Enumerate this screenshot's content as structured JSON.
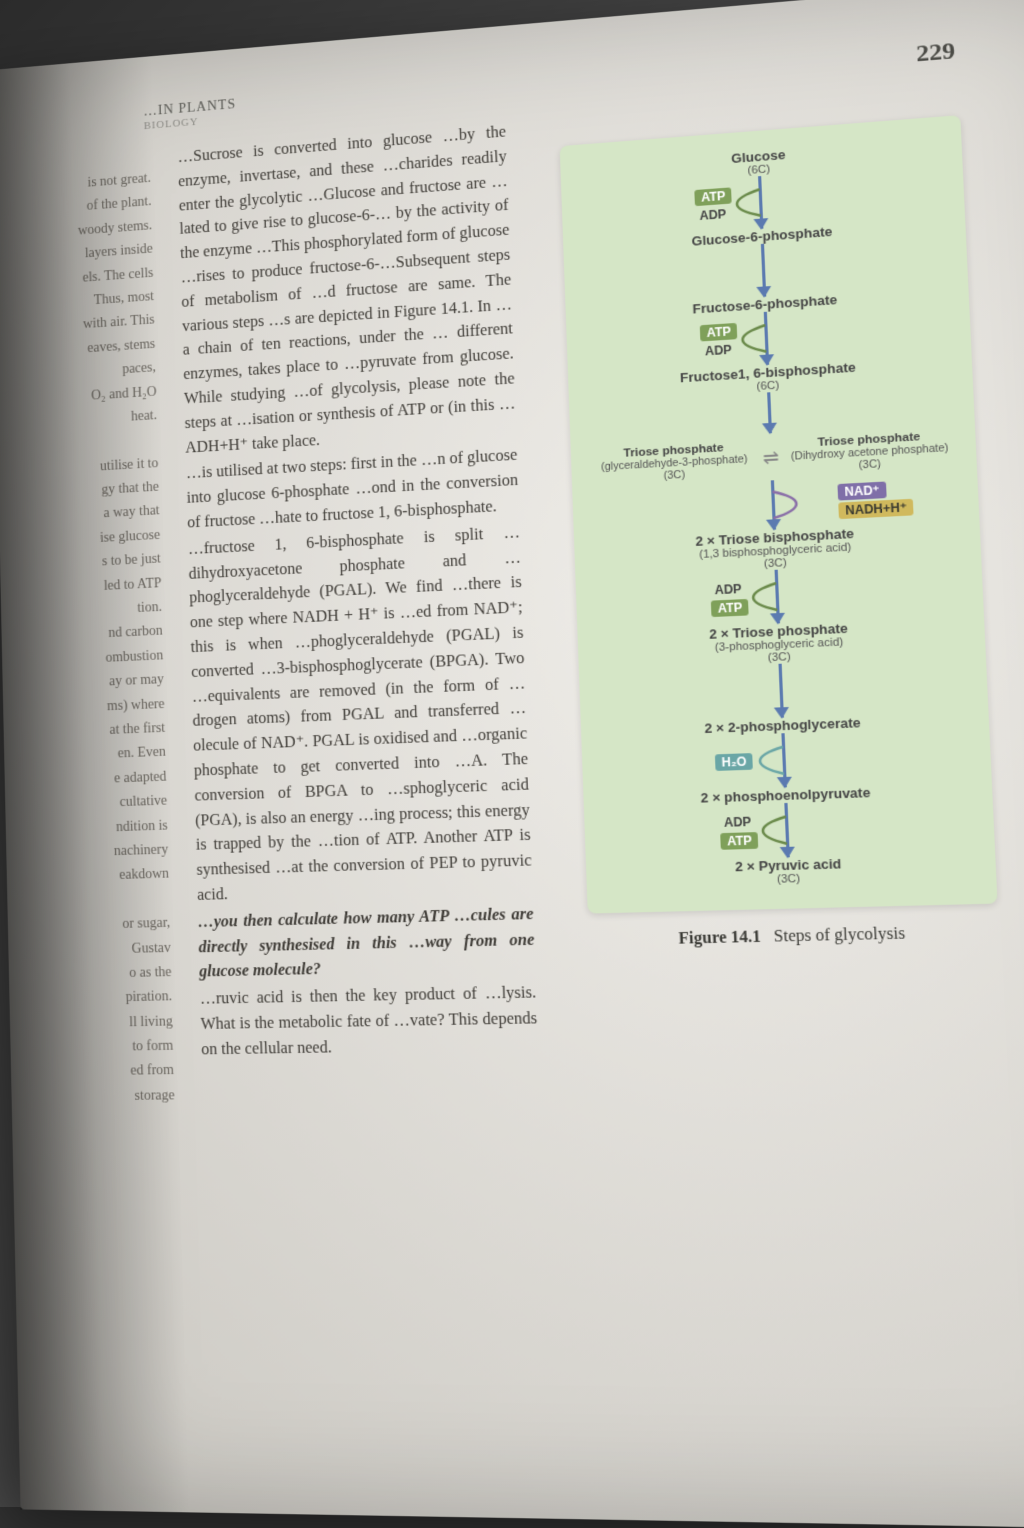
{
  "header": {
    "chapter_tag": "…IN PLANTS",
    "book_section": "BIOLOGY",
    "page_number": "229"
  },
  "margin_fragments": [
    "is not great.",
    "of the plant.",
    "woody stems.",
    "layers inside",
    "els. The cells",
    "Thus, most",
    "with air. This",
    "eaves, stems",
    "paces,",
    "O₂ and H₂O",
    "heat.",
    "",
    "utilise it to",
    "gy that the",
    "a way that",
    "ise glucose",
    "s to be just",
    "led to ATP",
    "tion.",
    "nd carbon",
    "ombustion",
    "ay or may",
    "ms) where",
    "at the first",
    "en. Even",
    "e adapted",
    "cultative",
    "ndition is",
    "nachinery",
    "eakdown",
    "",
    "or sugar,",
    "Gustav",
    "o as the",
    "piration.",
    "ll living",
    "to form",
    "ed from",
    "storage"
  ],
  "body": {
    "p1": "…Sucrose is converted into glucose …by the enzyme, invertase, and these …charides readily enter the glycolytic …Glucose and fructose are …lated to give rise to glucose-6-… by the activity of the enzyme …This phosphorylated form of glucose …rises to produce fructose-6-…Subsequent steps of metabolism of …d fructose are same. The various steps …s are depicted in Figure 14.1. In …a chain of ten reactions, under the … different enzymes, takes place to …pyruvate from glucose. While studying …of glycolysis, please note the steps at …isation or synthesis of ATP or (in this …ADH+H⁺ take place.",
    "p2": "…is utilised at two steps: first in the …n of glucose into glucose 6-phosphate …ond in the conversion of fructose …hate to fructose 1, 6-bisphosphate.",
    "p3": "…fructose 1, 6-bisphosphate is split …dihydroxyacetone phosphate and …phoglyceraldehyde (PGAL). We find …there is one step where NADH + H⁺ is …ed from NAD⁺; this is when …phoglyceraldehyde (PGAL) is converted …3-bisphosphoglycerate (BPGA). Two …equivalents are removed (in the form of …drogen atoms) from PGAL and transferred …olecule of NAD⁺. PGAL is oxidised and …organic phosphate to get converted into …A. The conversion of BPGA to …sphoglyceric acid (PGA), is also an energy …ing process; this energy is trapped by the …tion of ATP. Another ATP is synthesised …at the conversion of PEP to pyruvic acid.",
    "question": "…you then calculate how many ATP …cules are directly synthesised in this …way from one glucose molecule?",
    "p4": "…ruvic acid is then the key product of …lysis. What is the metabolic fate of …vate? This depends on the cellular need."
  },
  "figure": {
    "caption_label": "Figure 14.1",
    "caption_text": "Steps of glycolysis",
    "bg_color": "#d5e6c6",
    "arrow_color": "#5b7ab0",
    "tag_colors": {
      "atp": "#7fa05a",
      "nad": "#7f6fa8",
      "nadh": "#d0b95d",
      "h2o": "#6aa6a6"
    },
    "nodes": {
      "n0": "Glucose",
      "c0": "(6C)",
      "n1": "Glucose-6-phosphate",
      "n2": "Fructose-6-phosphate",
      "n3": "Fructose1, 6-bisphosphate",
      "c3": "(6C)",
      "branch_l_title": "Triose phosphate",
      "branch_l_sub": "(glyceraldehyde-3-phosphate)",
      "branch_l_c": "(3C)",
      "branch_r_title": "Triose phosphate",
      "branch_r_sub": "(Dihydroxy acetone phosphate)",
      "branch_r_c": "(3C)",
      "n5": "2 × Triose bisphosphate",
      "n5_sub": "(1,3 bisphosphoglyceric acid)",
      "c5": "(3C)",
      "n6": "2 × Triose phosphate",
      "n6_sub": "(3-phosphoglyceric acid)",
      "c6": "(3C)",
      "n7": "2 × 2-phosphoglycerate",
      "n8": "2 × phosphoenolpyruvate",
      "n9": "2 × Pyruvic acid",
      "c9": "(3C)"
    },
    "side_labels": {
      "atp": "ATP",
      "adp": "ADP",
      "nad": "NAD⁺",
      "nadh": "NADH+H⁺",
      "h2o": "H₂O"
    }
  }
}
